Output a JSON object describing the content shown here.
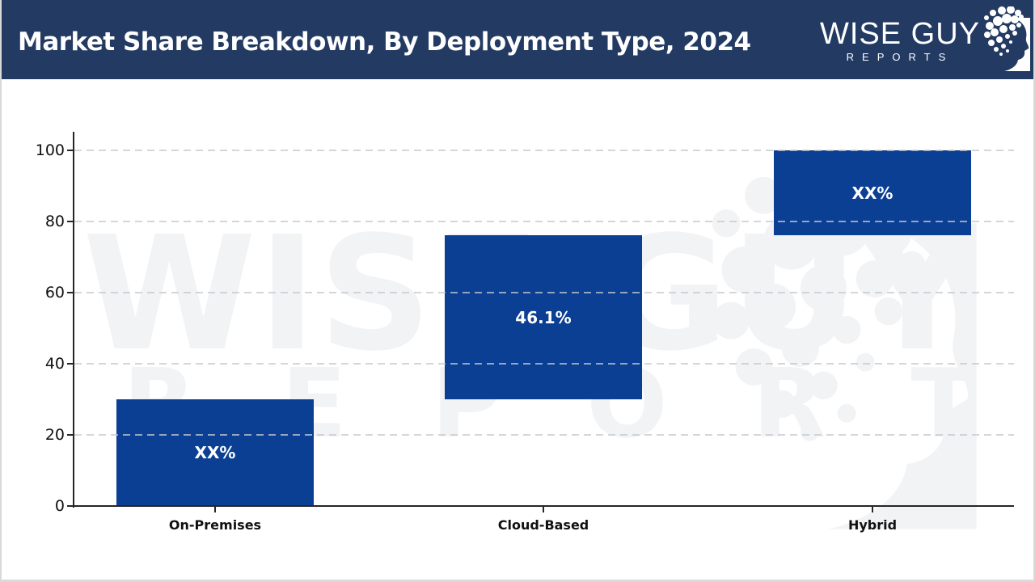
{
  "header": {
    "title": "Market Share Breakdown, By Deployment Type, 2024",
    "logo_line1": "WISE GUY",
    "logo_line2": "REPORTS",
    "bg_color": "#233a63"
  },
  "watermark": {
    "line1": "WISE GUY",
    "line2": "R E P O R T S"
  },
  "chart_data": {
    "type": "bar",
    "subtype": "waterfall",
    "title": "Market Share Breakdown, By Deployment Type, 2024",
    "categories": [
      "On-Premises",
      "Cloud-Based",
      "Hybrid"
    ],
    "bars": [
      {
        "category": "On-Premises",
        "start": 0,
        "end": 30,
        "label": "XX%"
      },
      {
        "category": "Cloud-Based",
        "start": 30,
        "end": 76.1,
        "label": "46.1%"
      },
      {
        "category": "Hybrid",
        "start": 76.1,
        "end": 100,
        "label": "XX%"
      }
    ],
    "y_ticks": [
      0,
      20,
      40,
      60,
      80,
      100
    ],
    "ylim": [
      0,
      105
    ],
    "xlabel": "",
    "ylabel": "",
    "grid": "dashed-horizontal",
    "legend": "none",
    "bar_color": "#0a3f93",
    "label_color": "#ffffff",
    "axis_color": "#262626"
  }
}
